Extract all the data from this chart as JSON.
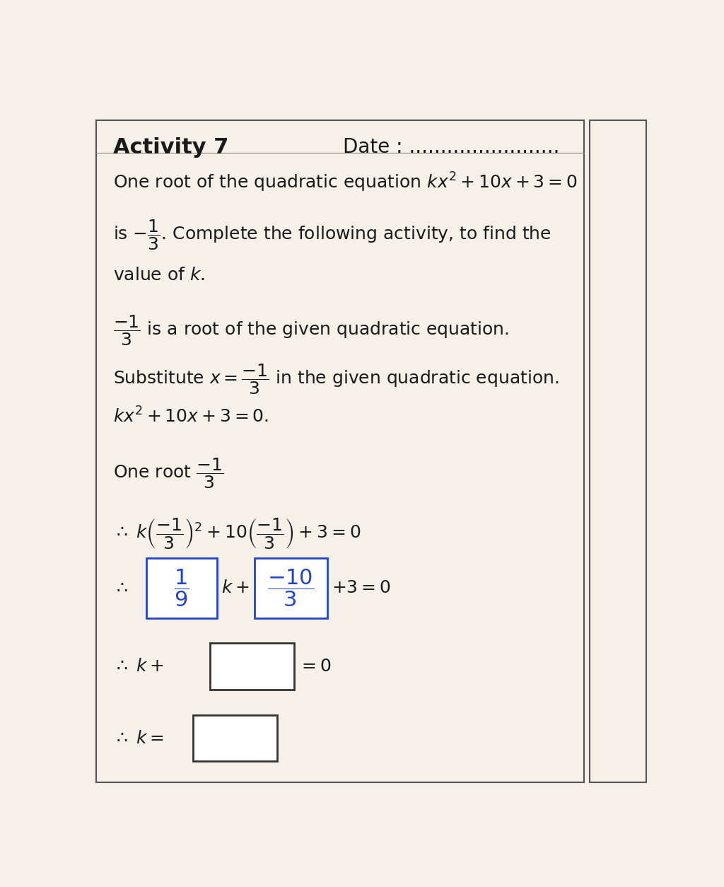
{
  "bg_color": "#f5f0e8",
  "panel_bg": "#f5f0e8",
  "title": "Activity 7",
  "date_label": "Date : ........................",
  "text_color": "#1a1a1a",
  "box_fill": "#ffffff",
  "blue_color": "#2244cc",
  "font_size_title": 22,
  "font_size_body": 18
}
